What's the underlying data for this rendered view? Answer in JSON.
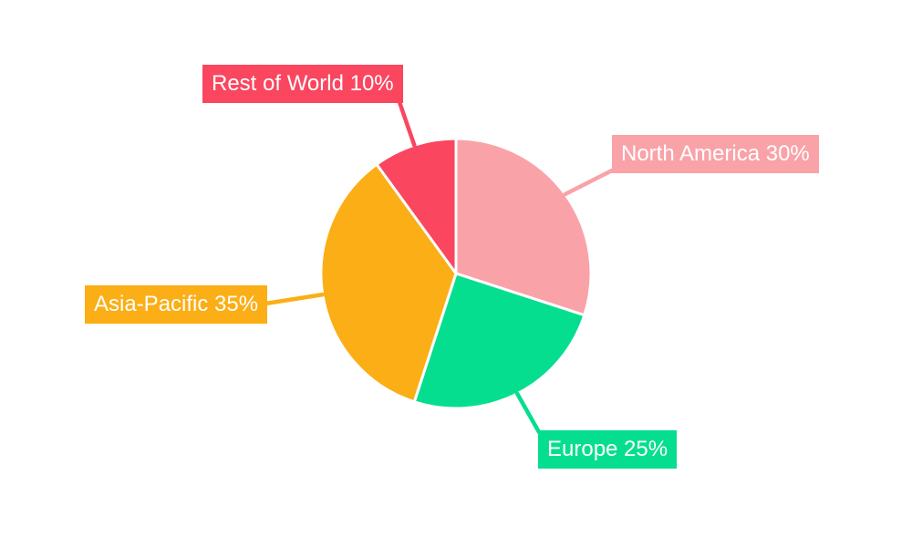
{
  "chart_data": {
    "type": "pie",
    "title": "",
    "background": "#ffffff",
    "slice_border_color": "#ffffff",
    "label_text_color": "#ffffff",
    "start_angle": "top",
    "direction": "clockwise",
    "categories": [
      "North America",
      "Europe",
      "Asia-Pacific",
      "Rest of World"
    ],
    "values": [
      30,
      25,
      35,
      10
    ],
    "unit": "%",
    "slices": [
      {
        "label": "North America",
        "value": 30,
        "display": "North America 30%",
        "color": "#F9A3A8"
      },
      {
        "label": "Europe",
        "value": 25,
        "display": "Europe 25%",
        "color": "#06DE8F"
      },
      {
        "label": "Asia-Pacific",
        "value": 35,
        "display": "Asia-Pacific 35%",
        "color": "#FBAE15"
      },
      {
        "label": "Rest of World",
        "value": 10,
        "display": "Rest of World 10%",
        "color": "#FA465F"
      }
    ]
  }
}
